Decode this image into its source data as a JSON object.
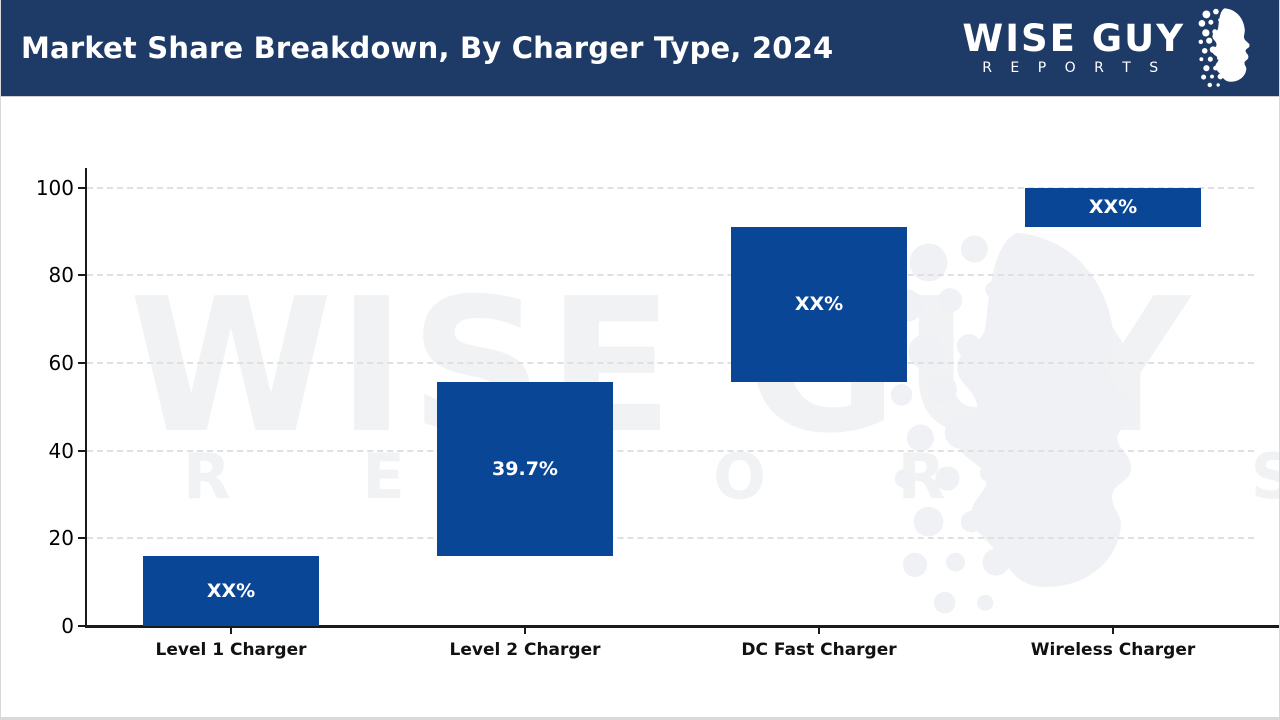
{
  "header": {
    "title": "Market Share Breakdown, By Charger Type, 2024",
    "logo": {
      "line1": "WISE GUY",
      "line2": "R E P O R T S"
    }
  },
  "watermark": {
    "line1": "WISE GUY",
    "line2": "R E P O R T S"
  },
  "colors": {
    "header_bg": "#1e3a67",
    "bar": "#0a4696",
    "grid": "#e0e0e0",
    "watermark": "#f1f2f4",
    "axis": "#1a1a1a"
  },
  "chart_data": {
    "type": "bar",
    "subtype": "waterfall",
    "title": "Market Share Breakdown, By Charger Type, 2024",
    "xlabel": "",
    "ylabel": "",
    "categories": [
      "Level 1 Charger",
      "Level 2 Charger",
      "DC Fast Charger",
      "Wireless Charger"
    ],
    "bars": [
      {
        "category": "Level 1 Charger",
        "start": 0,
        "end": 16,
        "label": "XX%",
        "value_masked": true,
        "approx_value": 16
      },
      {
        "category": "Level 2 Charger",
        "start": 16,
        "end": 55.7,
        "label": "39.7%",
        "value_masked": false,
        "value": 39.7
      },
      {
        "category": "DC Fast Charger",
        "start": 55.7,
        "end": 91,
        "label": "XX%",
        "value_masked": true,
        "approx_value": 35.3
      },
      {
        "category": "Wireless Charger",
        "start": 91,
        "end": 100,
        "label": "XX%",
        "value_masked": true,
        "approx_value": 9
      }
    ],
    "y_ticks": [
      0,
      20,
      40,
      60,
      80,
      100
    ],
    "ylim": [
      0,
      105
    ],
    "grid": "horizontal-dashed",
    "legend": "none",
    "bar_color": "#0a4696"
  }
}
